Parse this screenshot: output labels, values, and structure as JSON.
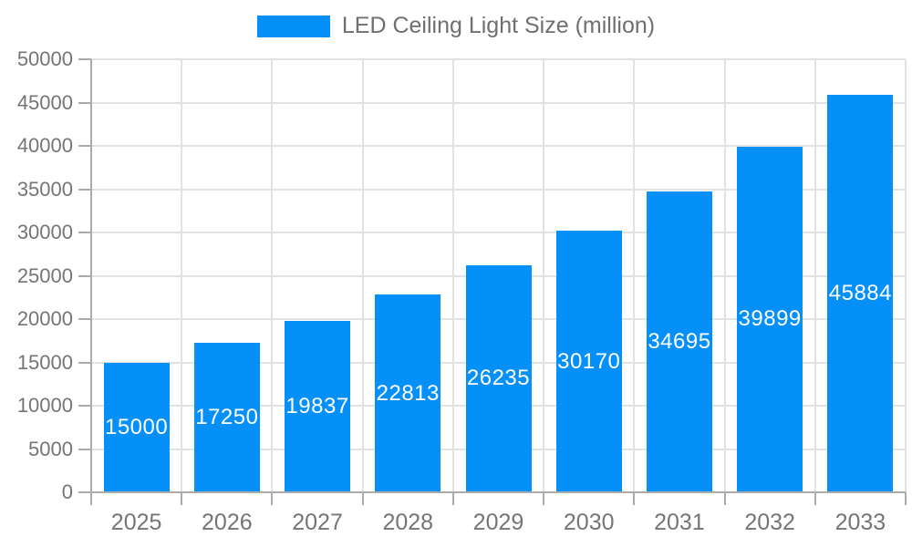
{
  "chart_data": {
    "type": "bar",
    "title": "",
    "legend_label": "LED Ceiling Light Size (million)",
    "legend_position": "top",
    "categories": [
      "2025",
      "2026",
      "2027",
      "2028",
      "2029",
      "2030",
      "2031",
      "2032",
      "2033"
    ],
    "series": [
      {
        "name": "LED Ceiling Light Size (million)",
        "values": [
          15000,
          17250,
          19837,
          22813,
          26235,
          30170,
          34695,
          39899,
          45884
        ]
      }
    ],
    "xlabel": "",
    "ylabel": "",
    "ylim": [
      0,
      50000
    ],
    "ytick_step": 5000,
    "ytick_labels": [
      "0",
      "5000",
      "10000",
      "15000",
      "20000",
      "25000",
      "30000",
      "35000",
      "40000",
      "45000",
      "50000"
    ],
    "grid": true,
    "value_labels_shown": true,
    "colors": {
      "bar": "#0590F9",
      "value_label": "#ffffff",
      "axis_text": "#757575",
      "legend_text": "#6f6f6f",
      "gridline": "#e2e2e2",
      "axis_line": "#ababab",
      "background": "#ffffff"
    }
  }
}
